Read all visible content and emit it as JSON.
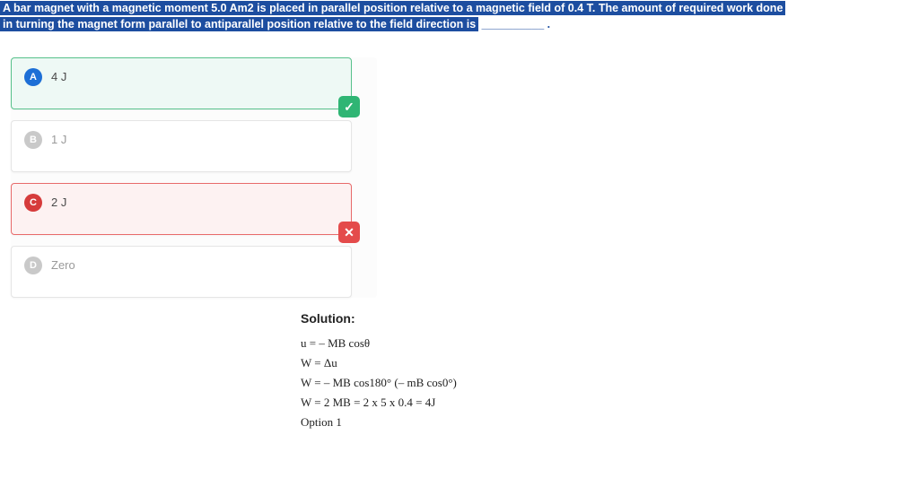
{
  "question": {
    "highlighted_part1": "A bar magnet with a magnetic moment 5.0 Am2 is placed in parallel position relative to a magnetic field of 0.4 T. The amount of required work done",
    "highlighted_part2": "in turning the  magnet form parallel to antiparallel position relative to the field direction is",
    "blank_trail": " __________ ."
  },
  "options": [
    {
      "letter": "A",
      "text": "4 J",
      "state": "correct",
      "badge_color": "blue",
      "muted": false
    },
    {
      "letter": "B",
      "text": "1 J",
      "state": "normal",
      "badge_color": "grey",
      "muted": true
    },
    {
      "letter": "C",
      "text": "2 J",
      "state": "wrong",
      "badge_color": "red",
      "muted": false
    },
    {
      "letter": "D",
      "text": "Zero",
      "state": "normal",
      "badge_color": "grey",
      "muted": true
    }
  ],
  "marks": {
    "correct_glyph": "✓",
    "wrong_glyph": "✕"
  },
  "solution": {
    "title": "Solution:",
    "lines": [
      "u = – MB cosθ",
      "W = Δu",
      "W = – MB cos180° (– mB cos0°)",
      "W = 2 MB = 2 x 5 x 0.4 = 4J",
      "Option 1"
    ]
  },
  "colors": {
    "highlight_bg": "#1d4ea0",
    "highlight_fg": "#ffffff",
    "correct_bg": "#eef9f5",
    "correct_border": "#57c18b",
    "wrong_bg": "#fdf2f2",
    "wrong_border": "#e86a6a",
    "badge_blue": "#1d6fd6",
    "badge_grey": "#c9c9c9",
    "badge_red": "#d63b3b",
    "mark_ok": "#2fb574",
    "mark_no": "#e44b4b"
  }
}
